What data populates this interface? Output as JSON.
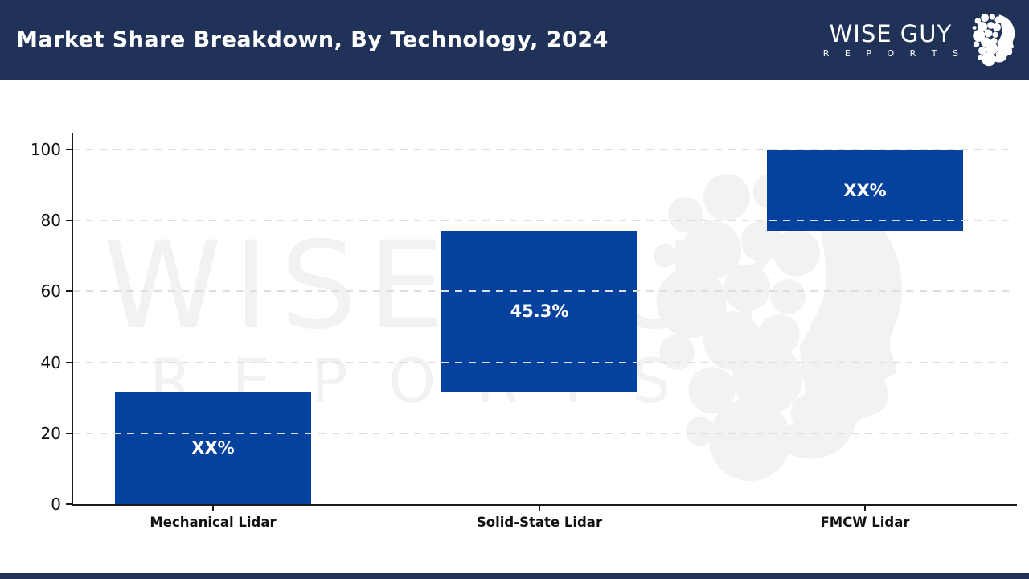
{
  "header": {
    "title": "Market Share Breakdown, By Technology, 2024",
    "logo": {
      "line1": "WISE GUY",
      "line2": "R E P O R T S"
    }
  },
  "watermark": {
    "line1": "WISE GUY",
    "line2": "REPORTS"
  },
  "colors": {
    "header_bg": "#203258",
    "bar": "#05429d",
    "gridline": "#dedede",
    "axis": "#1a1a1a",
    "watermark": "#f2f2f2",
    "bar_label": "#ffffff"
  },
  "chart_data": {
    "type": "bar",
    "subtype": "waterfall",
    "title": "Market Share Breakdown, By Technology, 2024",
    "categories": [
      "Mechanical Lidar",
      "Solid-State Lidar",
      "FMCW Lidar"
    ],
    "segments": [
      {
        "category": "Mechanical Lidar",
        "start": 0,
        "end": 31.7,
        "value": 31.7,
        "label": "XX%"
      },
      {
        "category": "Solid-State Lidar",
        "start": 31.7,
        "end": 77.0,
        "value": 45.3,
        "label": "45.3%"
      },
      {
        "category": "FMCW Lidar",
        "start": 77.0,
        "end": 100,
        "value": 23.0,
        "label": "XX%"
      }
    ],
    "xlabel": "",
    "ylabel": "",
    "ylim": [
      0,
      100
    ],
    "yticks": [
      0,
      20,
      40,
      60,
      80,
      100
    ],
    "grid": "horizontal-dashed-over-bars",
    "legend": "none",
    "bar_color": "#05429d"
  }
}
